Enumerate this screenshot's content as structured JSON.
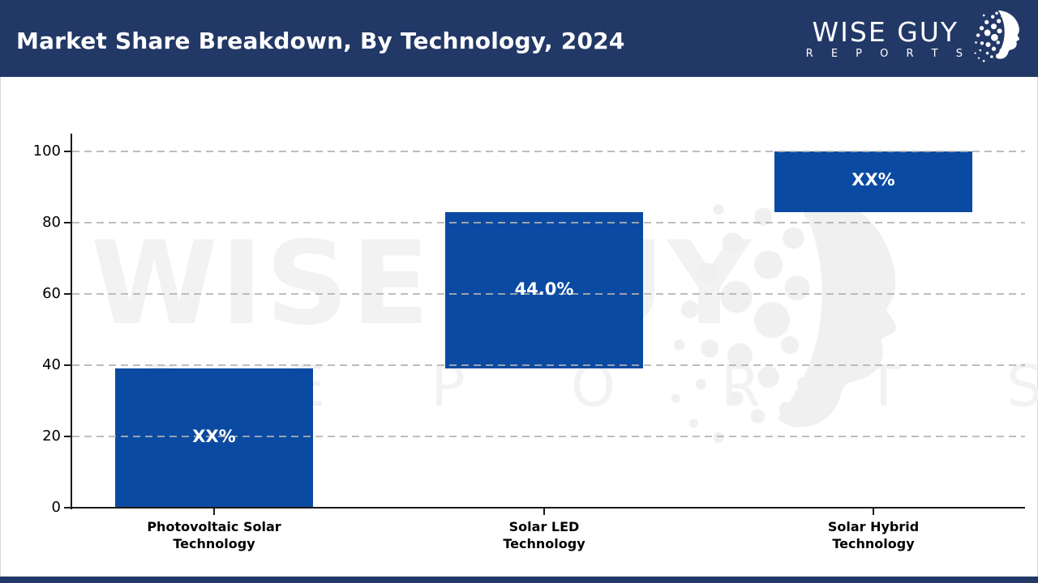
{
  "header": {
    "title": "Market Share Breakdown, By Technology, 2024",
    "logo": {
      "name_line": "WISE GUY",
      "sub_line": "R E P O R T S"
    }
  },
  "watermark": {
    "name_line": "WISE GUY",
    "sub_line": "R E P O R T S"
  },
  "footer": {
    "present": true
  },
  "chart_data": {
    "type": "bar",
    "variant": "floating-segment (waterfall-style market share bars)",
    "title": "Market Share Breakdown, By Technology, 2024",
    "categories": [
      "Photovoltaic Solar Technology",
      "Solar LED Technology",
      "Solar Hybrid Technology"
    ],
    "category_lines": [
      [
        "Photovoltaic Solar",
        "Technology"
      ],
      [
        "Solar LED",
        "Technology"
      ],
      [
        "Solar Hybrid",
        "Technology"
      ]
    ],
    "segments": [
      {
        "category": "Photovoltaic Solar Technology",
        "start": 0,
        "end": 39,
        "share_pct": 39,
        "value_label": "XX%"
      },
      {
        "category": "Solar LED Technology",
        "start": 39,
        "end": 83,
        "share_pct": 44,
        "value_label": "44.0%"
      },
      {
        "category": "Solar Hybrid Technology",
        "start": 83,
        "end": 100,
        "share_pct": 17,
        "value_label": "XX%"
      }
    ],
    "ylim": [
      0,
      100
    ],
    "yticks": [
      0,
      20,
      40,
      60,
      80,
      100
    ],
    "xlabel": "",
    "ylabel": "",
    "legend": null,
    "grid": {
      "horizontal": true,
      "style": "dashed",
      "drawn_above_bars": true
    }
  },
  "colors": {
    "header_bg": "#223866",
    "footer_bg": "#223866",
    "bar": "#0b4aa2",
    "value_label": "#ffffff",
    "grid": "#b2b2b2",
    "axis": "#1a1a1a",
    "watermark": "#f2f2f2",
    "title_text": "#ffffff"
  }
}
